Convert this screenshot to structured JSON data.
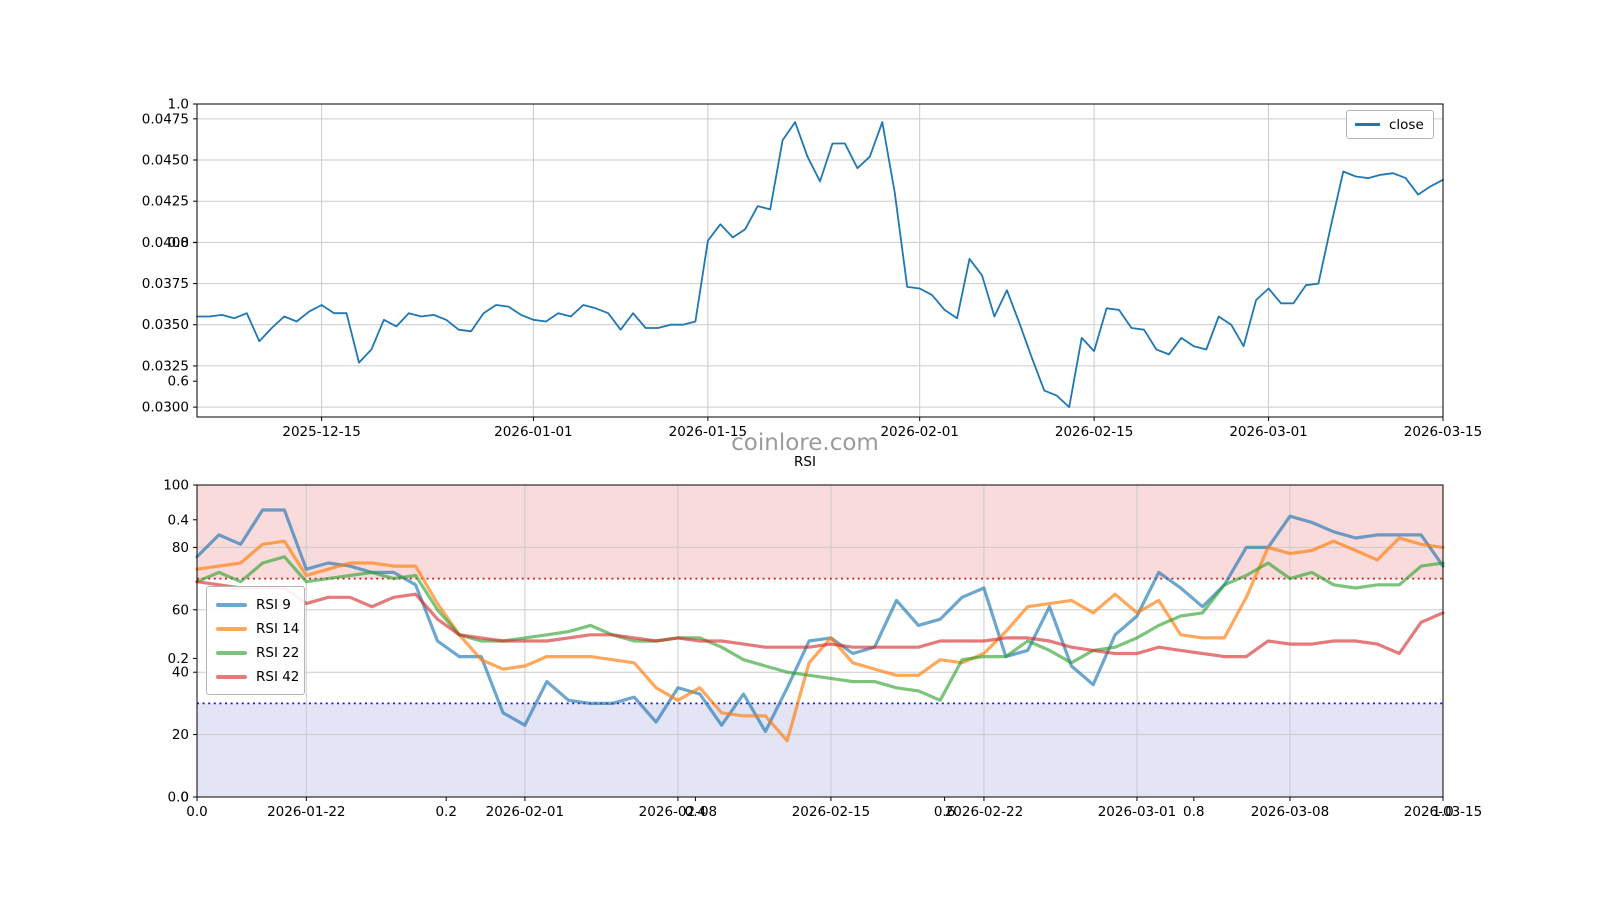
{
  "watermark": "coinlore.com",
  "overlay_axis": {
    "y_ticks": [
      "1.0",
      "0.8",
      "0.6",
      "0.4",
      "0.2",
      "0.0"
    ],
    "x_ticks": [
      "0.0",
      "0.2",
      "0.4",
      "0.6",
      "0.8",
      "1.0"
    ]
  },
  "chart_data": [
    {
      "type": "line",
      "title": "",
      "ylabel": "",
      "xlabel": "",
      "ylim": [
        0.0294,
        0.0484
      ],
      "grid": true,
      "legend_position": "upper right",
      "y_ticks": [
        {
          "v": 0.03,
          "label": "0.0300"
        },
        {
          "v": 0.0325,
          "label": "0.0325"
        },
        {
          "v": 0.035,
          "label": "0.0350"
        },
        {
          "v": 0.0375,
          "label": "0.0375"
        },
        {
          "v": 0.04,
          "label": "0.0400"
        },
        {
          "v": 0.0425,
          "label": "0.0425"
        },
        {
          "v": 0.045,
          "label": "0.0450"
        },
        {
          "v": 0.0475,
          "label": "0.0475"
        }
      ],
      "x_ticks": [
        {
          "date": "2025-12-15",
          "label": "2025-12-15"
        },
        {
          "date": "2026-01-01",
          "label": "2026-01-01"
        },
        {
          "date": "2026-01-15",
          "label": "2026-01-15"
        },
        {
          "date": "2026-02-01",
          "label": "2026-02-01"
        },
        {
          "date": "2026-02-15",
          "label": "2026-02-15"
        },
        {
          "date": "2026-03-01",
          "label": "2026-03-01"
        },
        {
          "date": "2026-03-15",
          "label": "2026-03-15"
        }
      ],
      "dates": [
        "2025-12-05",
        "2025-12-06",
        "2025-12-07",
        "2025-12-08",
        "2025-12-09",
        "2025-12-10",
        "2025-12-11",
        "2025-12-12",
        "2025-12-13",
        "2025-12-14",
        "2025-12-15",
        "2025-12-16",
        "2025-12-17",
        "2025-12-18",
        "2025-12-19",
        "2025-12-20",
        "2025-12-21",
        "2025-12-22",
        "2025-12-23",
        "2025-12-24",
        "2025-12-25",
        "2025-12-26",
        "2025-12-27",
        "2025-12-28",
        "2025-12-29",
        "2025-12-30",
        "2025-12-31",
        "2026-01-01",
        "2026-01-02",
        "2026-01-03",
        "2026-01-04",
        "2026-01-05",
        "2026-01-06",
        "2026-01-07",
        "2026-01-08",
        "2026-01-09",
        "2026-01-10",
        "2026-01-11",
        "2026-01-12",
        "2026-01-13",
        "2026-01-14",
        "2026-01-15",
        "2026-01-16",
        "2026-01-17",
        "2026-01-18",
        "2026-01-19",
        "2026-01-20",
        "2026-01-21",
        "2026-01-22",
        "2026-01-23",
        "2026-01-24",
        "2026-01-25",
        "2026-01-26",
        "2026-01-27",
        "2026-01-28",
        "2026-01-29",
        "2026-01-30",
        "2026-01-31",
        "2026-02-01",
        "2026-02-02",
        "2026-02-03",
        "2026-02-04",
        "2026-02-05",
        "2026-02-06",
        "2026-02-07",
        "2026-02-08",
        "2026-02-09",
        "2026-02-10",
        "2026-02-11",
        "2026-02-12",
        "2026-02-13",
        "2026-02-14",
        "2026-02-15",
        "2026-02-16",
        "2026-02-17",
        "2026-02-18",
        "2026-02-19",
        "2026-02-20",
        "2026-02-21",
        "2026-02-22",
        "2026-02-23",
        "2026-02-24",
        "2026-02-25",
        "2026-02-26",
        "2026-02-27",
        "2026-02-28",
        "2026-03-01",
        "2026-03-02",
        "2026-03-03",
        "2026-03-04",
        "2026-03-05",
        "2026-03-06",
        "2026-03-07",
        "2026-03-08",
        "2026-03-09",
        "2026-03-10",
        "2026-03-11",
        "2026-03-12",
        "2026-03-13",
        "2026-03-14",
        "2026-03-15"
      ],
      "series": [
        {
          "name": "close",
          "color": "#1f77b4",
          "width": 1.8,
          "values": [
            0.0355,
            0.0355,
            0.0356,
            0.0354,
            0.0357,
            0.034,
            0.0348,
            0.0355,
            0.0352,
            0.0358,
            0.0362,
            0.0357,
            0.0357,
            0.0327,
            0.0335,
            0.0353,
            0.0349,
            0.0357,
            0.0355,
            0.0356,
            0.0353,
            0.0347,
            0.0346,
            0.0357,
            0.0362,
            0.0361,
            0.0356,
            0.0353,
            0.0352,
            0.0357,
            0.0355,
            0.0362,
            0.036,
            0.0357,
            0.0347,
            0.0357,
            0.0348,
            0.0348,
            0.035,
            0.035,
            0.0352,
            0.0401,
            0.0411,
            0.0403,
            0.0408,
            0.0422,
            0.042,
            0.0462,
            0.0473,
            0.0452,
            0.0437,
            0.046,
            0.046,
            0.0445,
            0.0452,
            0.0473,
            0.043,
            0.0373,
            0.0372,
            0.0368,
            0.0359,
            0.0354,
            0.039,
            0.038,
            0.0355,
            0.0371,
            0.0351,
            0.033,
            0.031,
            0.0307,
            0.03,
            0.0342,
            0.0334,
            0.036,
            0.0359,
            0.0348,
            0.0347,
            0.0335,
            0.0332,
            0.0342,
            0.0337,
            0.0335,
            0.0355,
            0.035,
            0.0337,
            0.0365,
            0.0372,
            0.0363,
            0.0363,
            0.0374,
            0.0375,
            0.041,
            0.0443,
            0.044,
            0.0439,
            0.0441,
            0.0442,
            0.0439,
            0.0429,
            0.0434,
            0.0438
          ]
        }
      ]
    },
    {
      "type": "line",
      "title": "RSI",
      "ylabel": "",
      "xlabel": "",
      "ylim": [
        0,
        100
      ],
      "grid": true,
      "legend_position": "center left",
      "y_ticks": [
        {
          "v": 0,
          "label": "0"
        },
        {
          "v": 20,
          "label": "20"
        },
        {
          "v": 40,
          "label": "40"
        },
        {
          "v": 60,
          "label": "60"
        },
        {
          "v": 80,
          "label": "80"
        },
        {
          "v": 100,
          "label": "100"
        }
      ],
      "x_ticks": [
        {
          "date": "2026-01-22",
          "label": "2026-01-22"
        },
        {
          "date": "2026-02-01",
          "label": "2026-02-01"
        },
        {
          "date": "2026-02-08",
          "label": "2026-02-08"
        },
        {
          "date": "2026-02-15",
          "label": "2026-02-15"
        },
        {
          "date": "2026-02-22",
          "label": "2026-02-22"
        },
        {
          "date": "2026-03-01",
          "label": "2026-03-01"
        },
        {
          "date": "2026-03-08",
          "label": "2026-03-08"
        },
        {
          "date": "2026-03-15",
          "label": "2026-03-15"
        }
      ],
      "bands": [
        {
          "from": 70,
          "to": 100,
          "color": "#fadbdb",
          "meaning": "overbought"
        },
        {
          "from": 0,
          "to": 30,
          "color": "#e4e4f7",
          "meaning": "oversold"
        }
      ],
      "hlines": [
        {
          "y": 70,
          "color": "#e0191c",
          "style": "dotted"
        },
        {
          "y": 30,
          "color": "#1b1bc8",
          "style": "dotted"
        }
      ],
      "dates": [
        "2026-01-17",
        "2026-01-18",
        "2026-01-19",
        "2026-01-20",
        "2026-01-21",
        "2026-01-22",
        "2026-01-23",
        "2026-01-24",
        "2026-01-25",
        "2026-01-26",
        "2026-01-27",
        "2026-01-28",
        "2026-01-29",
        "2026-01-30",
        "2026-01-31",
        "2026-02-01",
        "2026-02-02",
        "2026-02-03",
        "2026-02-04",
        "2026-02-05",
        "2026-02-06",
        "2026-02-07",
        "2026-02-08",
        "2026-02-09",
        "2026-02-10",
        "2026-02-11",
        "2026-02-12",
        "2026-02-13",
        "2026-02-14",
        "2026-02-15",
        "2026-02-16",
        "2026-02-17",
        "2026-02-18",
        "2026-02-19",
        "2026-02-20",
        "2026-02-21",
        "2026-02-22",
        "2026-02-23",
        "2026-02-24",
        "2026-02-25",
        "2026-02-26",
        "2026-02-27",
        "2026-02-28",
        "2026-03-01",
        "2026-03-02",
        "2026-03-03",
        "2026-03-04",
        "2026-03-05",
        "2026-03-06",
        "2026-03-07",
        "2026-03-08",
        "2026-03-09",
        "2026-03-10",
        "2026-03-11",
        "2026-03-12",
        "2026-03-13",
        "2026-03-14",
        "2026-03-15"
      ],
      "series": [
        {
          "name": "RSI 9",
          "color": "rgba(31,119,180,0.65)",
          "width": 3.2,
          "values": [
            77,
            84,
            81,
            92,
            92,
            73,
            75,
            74,
            72,
            72,
            68,
            50,
            45,
            45,
            27,
            23,
            37,
            31,
            30,
            30,
            32,
            24,
            35,
            33,
            23,
            33,
            21,
            35,
            50,
            51,
            46,
            48,
            63,
            55,
            57,
            64,
            67,
            45,
            47,
            61,
            42,
            36,
            52,
            58,
            72,
            67,
            61,
            68,
            80,
            80,
            90,
            88,
            85,
            83,
            84,
            84,
            84,
            74
          ]
        },
        {
          "name": "RSI 14",
          "color": "rgba(255,127,14,0.68)",
          "width": 3.2,
          "values": [
            73,
            74,
            75,
            81,
            82,
            71,
            73,
            75,
            75,
            74,
            74,
            62,
            52,
            44,
            41,
            42,
            45,
            45,
            45,
            44,
            43,
            35,
            31,
            35,
            27,
            26,
            26,
            18,
            43,
            51,
            43,
            41,
            39,
            39,
            44,
            43,
            46,
            53,
            61,
            62,
            63,
            59,
            65,
            59,
            63,
            52,
            51,
            51,
            64,
            80,
            78,
            79,
            82,
            79,
            76,
            83,
            81,
            80
          ]
        },
        {
          "name": "RSI 22",
          "color": "rgba(44,160,44,0.62)",
          "width": 3.2,
          "values": [
            69,
            72,
            69,
            75,
            77,
            69,
            70,
            71,
            72,
            70,
            71,
            60,
            52,
            50,
            50,
            51,
            52,
            53,
            55,
            52,
            50,
            50,
            51,
            51,
            48,
            44,
            42,
            40,
            39,
            38,
            37,
            37,
            35,
            34,
            31,
            44,
            45,
            45,
            50,
            47,
            43,
            47,
            48,
            51,
            55,
            58,
            59,
            68,
            71,
            75,
            70,
            72,
            68,
            67,
            68,
            68,
            74,
            75
          ]
        },
        {
          "name": "RSI 42",
          "color": "rgba(214,39,40,0.62)",
          "width": 3.2,
          "values": [
            69,
            68,
            67,
            67,
            67,
            62,
            64,
            64,
            61,
            64,
            65,
            57,
            52,
            51,
            50,
            50,
            50,
            51,
            52,
            52,
            51,
            50,
            51,
            50,
            50,
            49,
            48,
            48,
            48,
            49,
            48,
            48,
            48,
            48,
            50,
            50,
            50,
            51,
            51,
            50,
            48,
            47,
            46,
            46,
            48,
            47,
            46,
            45,
            45,
            50,
            49,
            49,
            50,
            50,
            49,
            46,
            56,
            59
          ]
        }
      ]
    }
  ]
}
